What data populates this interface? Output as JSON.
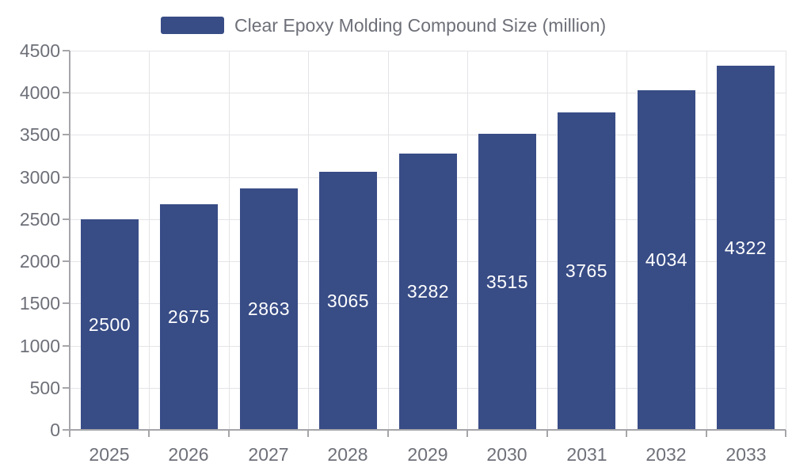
{
  "legend": {
    "label": "Clear Epoxy Molding Compound Size (million)"
  },
  "chart_data": {
    "type": "bar",
    "title": "Clear Epoxy Molding Compound Size (million)",
    "categories": [
      "2025",
      "2026",
      "2027",
      "2028",
      "2029",
      "2030",
      "2031",
      "2032",
      "2033"
    ],
    "values": [
      2500,
      2675,
      2863,
      3065,
      3282,
      3515,
      3765,
      4034,
      4322
    ],
    "xlabel": "",
    "ylabel": "",
    "ylim": [
      0,
      4500
    ],
    "ytick_step": 500,
    "grid": true,
    "legend_position": "top-center",
    "bar_label_position": "inside-center"
  },
  "colors": {
    "bar": "#384c86",
    "bar_label": "#ffffff",
    "axis_line": "#a6a6aa",
    "grid_line": "#e4e4e8",
    "tick_label": "#6e7079",
    "legend_text": "#6e7079",
    "background": "#ffffff"
  }
}
